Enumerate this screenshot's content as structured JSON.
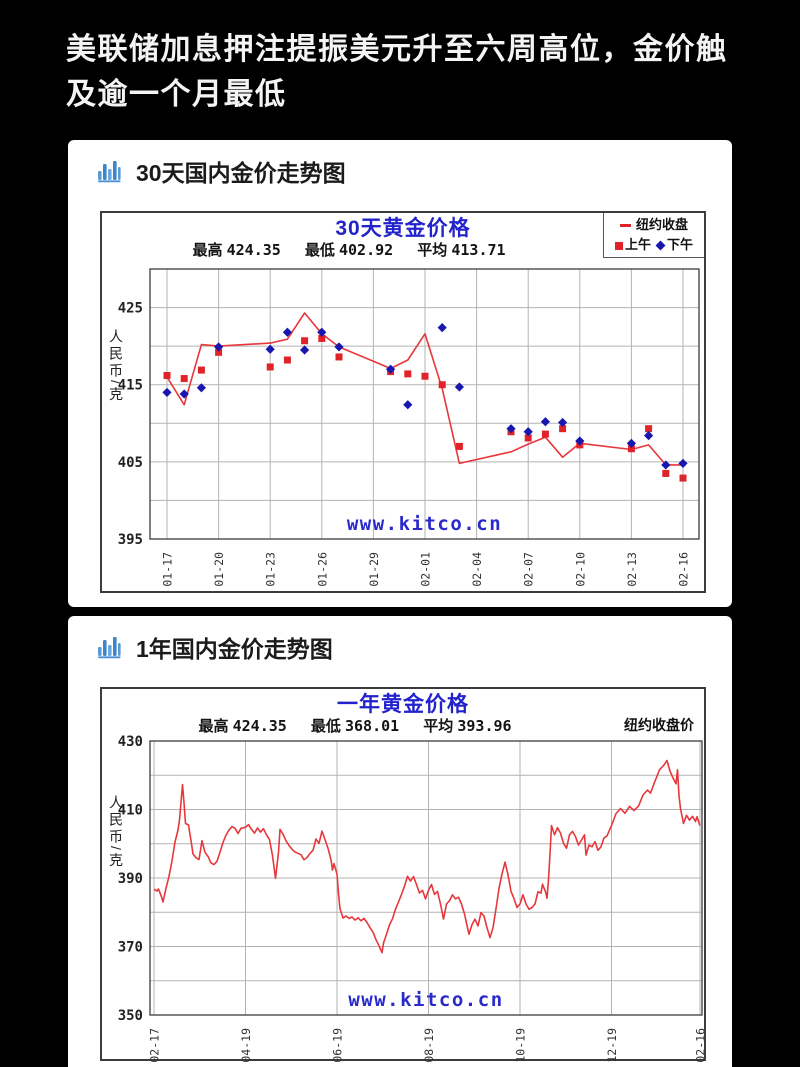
{
  "headline": "美联储加息押注提振美元升至六周高位，金价触及逾一个月最低",
  "cards": [
    {
      "title": "30天国内金价走势图"
    },
    {
      "title": "1年国内金价走势图"
    }
  ],
  "chart_data": [
    {
      "type": "line+scatter",
      "title": "30天黄金价格",
      "stats": {
        "high_label": "最高",
        "high": "424.35",
        "low_label": "最低",
        "low": "402.92",
        "avg_label": "平均",
        "avg": "413.71"
      },
      "legend": {
        "close_label": "纽约收盘",
        "am_label": "上午",
        "pm_label": "下午"
      },
      "ylabel": "人民币/克",
      "ylim": [
        395,
        430
      ],
      "ytick_step": 5,
      "yticks_labeled": [
        "425",
        "415",
        "405",
        "395"
      ],
      "xticks": [
        {
          "label": "01-17",
          "offset": 0
        },
        {
          "label": "01-20",
          "offset": 3
        },
        {
          "label": "01-23",
          "offset": 6
        },
        {
          "label": "01-26",
          "offset": 9
        },
        {
          "label": "01-29",
          "offset": 12
        },
        {
          "label": "02-01",
          "offset": 15
        },
        {
          "label": "02-04",
          "offset": 18
        },
        {
          "label": "02-07",
          "offset": 21
        },
        {
          "label": "02-10",
          "offset": 24
        },
        {
          "label": "02-13",
          "offset": 27
        },
        {
          "label": "02-16",
          "offset": 30
        }
      ],
      "x_span_days": 30,
      "watermark": "www.kitco.cn",
      "colors": {
        "line": "#e8373c",
        "am": "#e02328",
        "pm": "#1717b0",
        "title": "#2323cc",
        "watermark": "#2a2acc",
        "grid": "#b3b3b3",
        "border": "#4a4a4a"
      },
      "series": {
        "dates": [
          "01-17",
          "01-18",
          "01-19",
          "01-20",
          "01-23",
          "01-24",
          "01-25",
          "01-26",
          "01-27",
          "01-30",
          "01-31",
          "02-01",
          "02-02",
          "02-03",
          "02-06",
          "02-07",
          "02-08",
          "02-09",
          "02-10",
          "02-13",
          "02-14",
          "02-15",
          "02-16"
        ],
        "close": [
          416.0,
          412.4,
          420.2,
          420.0,
          420.4,
          420.9,
          424.3,
          421.6,
          419.9,
          417.1,
          418.2,
          421.6,
          414.5,
          404.8,
          406.3,
          407.3,
          408.2,
          405.6,
          407.4,
          406.6,
          407.2,
          404.6,
          404.6
        ],
        "am": [
          416.2,
          415.8,
          416.9,
          419.2,
          417.3,
          418.2,
          420.7,
          421.0,
          418.6,
          416.7,
          416.4,
          416.1,
          415.0,
          407.0,
          408.9,
          408.1,
          408.6,
          409.3,
          407.2,
          406.7,
          409.3,
          403.5,
          402.9
        ],
        "pm": [
          414.0,
          413.8,
          414.6,
          419.9,
          419.6,
          421.8,
          419.5,
          421.8,
          419.9,
          417.0,
          412.4,
          null,
          422.4,
          414.7,
          409.3,
          408.9,
          410.2,
          410.1,
          407.7,
          407.4,
          408.4,
          404.6,
          404.8
        ]
      }
    },
    {
      "type": "line",
      "title": "一年黄金价格",
      "stats": {
        "high_label": "最高",
        "high": "424.35",
        "low_label": "最低",
        "low": "368.01",
        "avg_label": "平均",
        "avg": "393.96"
      },
      "legend": {
        "close_label": "纽约收盘价"
      },
      "ylabel": "人民币/克",
      "ylim": [
        350,
        430
      ],
      "ytick_step": 10,
      "yticks_labeled": [
        "430",
        "410",
        "390",
        "370",
        "350"
      ],
      "xticks": [
        {
          "label": "02-17",
          "offset": 0
        },
        {
          "label": "04-19",
          "offset": 61
        },
        {
          "label": "06-19",
          "offset": 122
        },
        {
          "label": "08-19",
          "offset": 183
        },
        {
          "label": "10-19",
          "offset": 244
        },
        {
          "label": "12-19",
          "offset": 305
        },
        {
          "label": "02-16",
          "offset": 364
        }
      ],
      "x_span_days": 364,
      "watermark": "www.kitco.cn",
      "colors": {
        "line": "#e8373c",
        "title": "#2323cc",
        "watermark": "#2a2acc",
        "grid": "#b3b3b3",
        "border": "#4a4a4a"
      },
      "series": {
        "name": "纽约收盘价",
        "points": [
          [
            0,
            386.7
          ],
          [
            2,
            386.2
          ],
          [
            3,
            386.8
          ],
          [
            5,
            384.5
          ],
          [
            6,
            383.0
          ],
          [
            8,
            387.0
          ],
          [
            10,
            390.5
          ],
          [
            12,
            395.0
          ],
          [
            14,
            400.5
          ],
          [
            16,
            404.0
          ],
          [
            17,
            407.0
          ],
          [
            19,
            417.3
          ],
          [
            20,
            412.0
          ],
          [
            21,
            405.9
          ],
          [
            23,
            405.5
          ],
          [
            25,
            400.0
          ],
          [
            26,
            397.0
          ],
          [
            28,
            395.9
          ],
          [
            30,
            395.4
          ],
          [
            32,
            400.9
          ],
          [
            34,
            397.5
          ],
          [
            36,
            396.3
          ],
          [
            38,
            394.4
          ],
          [
            40,
            393.9
          ],
          [
            42,
            394.9
          ],
          [
            44,
            397.5
          ],
          [
            46,
            400.4
          ],
          [
            48,
            402.5
          ],
          [
            50,
            404.0
          ],
          [
            52,
            405.0
          ],
          [
            54,
            404.5
          ],
          [
            56,
            403.0
          ],
          [
            58,
            404.5
          ],
          [
            61,
            404.8
          ],
          [
            63,
            405.6
          ],
          [
            65,
            404.2
          ],
          [
            67,
            403.1
          ],
          [
            69,
            404.6
          ],
          [
            71,
            403.4
          ],
          [
            73,
            404.4
          ],
          [
            75,
            402.6
          ],
          [
            77,
            401.2
          ],
          [
            79,
            396.5
          ],
          [
            81,
            389.9
          ],
          [
            83,
            397.5
          ],
          [
            84,
            404.2
          ],
          [
            86,
            402.8
          ],
          [
            88,
            400.9
          ],
          [
            90,
            399.5
          ],
          [
            92,
            398.4
          ],
          [
            94,
            397.6
          ],
          [
            96,
            397.2
          ],
          [
            98,
            396.8
          ],
          [
            100,
            395.3
          ],
          [
            102,
            396.0
          ],
          [
            104,
            397.2
          ],
          [
            106,
            398.1
          ],
          [
            108,
            401.4
          ],
          [
            110,
            400.1
          ],
          [
            112,
            403.7
          ],
          [
            114,
            401.2
          ],
          [
            116,
            398.7
          ],
          [
            118,
            395.3
          ],
          [
            119,
            392.3
          ],
          [
            120,
            394.2
          ],
          [
            122,
            391.1
          ],
          [
            123,
            385.5
          ],
          [
            124,
            381.0
          ],
          [
            126,
            378.3
          ],
          [
            128,
            378.9
          ],
          [
            130,
            378.2
          ],
          [
            132,
            378.6
          ],
          [
            134,
            377.7
          ],
          [
            136,
            378.4
          ],
          [
            138,
            377.5
          ],
          [
            140,
            378.2
          ],
          [
            142,
            377.0
          ],
          [
            144,
            375.5
          ],
          [
            146,
            374.2
          ],
          [
            148,
            372.0
          ],
          [
            150,
            370.2
          ],
          [
            152,
            368.2
          ],
          [
            153,
            371.0
          ],
          [
            155,
            373.6
          ],
          [
            157,
            376.3
          ],
          [
            159,
            378.1
          ],
          [
            161,
            380.9
          ],
          [
            163,
            383.0
          ],
          [
            165,
            385.2
          ],
          [
            167,
            387.6
          ],
          [
            169,
            390.5
          ],
          [
            171,
            389.1
          ],
          [
            173,
            390.4
          ],
          [
            175,
            388.1
          ],
          [
            177,
            385.6
          ],
          [
            179,
            386.4
          ],
          [
            181,
            383.9
          ],
          [
            183,
            386.4
          ],
          [
            185,
            388.1
          ],
          [
            187,
            385.2
          ],
          [
            189,
            386.1
          ],
          [
            191,
            382.4
          ],
          [
            193,
            378.0
          ],
          [
            195,
            382.4
          ],
          [
            197,
            383.4
          ],
          [
            199,
            385.1
          ],
          [
            201,
            383.9
          ],
          [
            203,
            384.4
          ],
          [
            205,
            382.4
          ],
          [
            207,
            379.5
          ],
          [
            209,
            375.5
          ],
          [
            210,
            373.6
          ],
          [
            212,
            376.4
          ],
          [
            214,
            378.0
          ],
          [
            216,
            376.0
          ],
          [
            218,
            379.9
          ],
          [
            220,
            378.9
          ],
          [
            222,
            375.5
          ],
          [
            224,
            372.6
          ],
          [
            226,
            375.5
          ],
          [
            228,
            381.0
          ],
          [
            230,
            387.0
          ],
          [
            232,
            391.2
          ],
          [
            234,
            394.6
          ],
          [
            236,
            391.0
          ],
          [
            238,
            386.1
          ],
          [
            240,
            384.0
          ],
          [
            242,
            381.4
          ],
          [
            244,
            382.4
          ],
          [
            246,
            385.1
          ],
          [
            248,
            382.4
          ],
          [
            250,
            380.9
          ],
          [
            252,
            381.4
          ],
          [
            254,
            382.4
          ],
          [
            256,
            386.0
          ],
          [
            258,
            385.6
          ],
          [
            259,
            388.2
          ],
          [
            261,
            386.0
          ],
          [
            262,
            384.1
          ],
          [
            263,
            389.5
          ],
          [
            264,
            397.0
          ],
          [
            265,
            405.3
          ],
          [
            267,
            402.6
          ],
          [
            269,
            404.7
          ],
          [
            271,
            403.1
          ],
          [
            273,
            400.1
          ],
          [
            275,
            398.7
          ],
          [
            277,
            402.6
          ],
          [
            279,
            403.6
          ],
          [
            281,
            402.1
          ],
          [
            283,
            399.6
          ],
          [
            285,
            401.1
          ],
          [
            287,
            402.6
          ],
          [
            288,
            396.7
          ],
          [
            290,
            399.6
          ],
          [
            292,
            399.1
          ],
          [
            294,
            400.6
          ],
          [
            296,
            398.1
          ],
          [
            298,
            399.1
          ],
          [
            300,
            401.7
          ],
          [
            302,
            402.3
          ],
          [
            305,
            405.3
          ],
          [
            308,
            408.8
          ],
          [
            311,
            410.3
          ],
          [
            314,
            408.9
          ],
          [
            317,
            410.9
          ],
          [
            320,
            409.7
          ],
          [
            323,
            411.0
          ],
          [
            326,
            414.2
          ],
          [
            329,
            415.7
          ],
          [
            331,
            414.8
          ],
          [
            334,
            418.3
          ],
          [
            337,
            421.6
          ],
          [
            340,
            423.0
          ],
          [
            342,
            424.3
          ],
          [
            344,
            421.2
          ],
          [
            346,
            419.2
          ],
          [
            348,
            417.5
          ],
          [
            349,
            421.6
          ],
          [
            350,
            414.0
          ],
          [
            351,
            410.3
          ],
          [
            353,
            405.9
          ],
          [
            355,
            408.3
          ],
          [
            357,
            406.9
          ],
          [
            359,
            408.0
          ],
          [
            361,
            406.5
          ],
          [
            362,
            407.9
          ],
          [
            364,
            405.3
          ]
        ]
      }
    }
  ]
}
